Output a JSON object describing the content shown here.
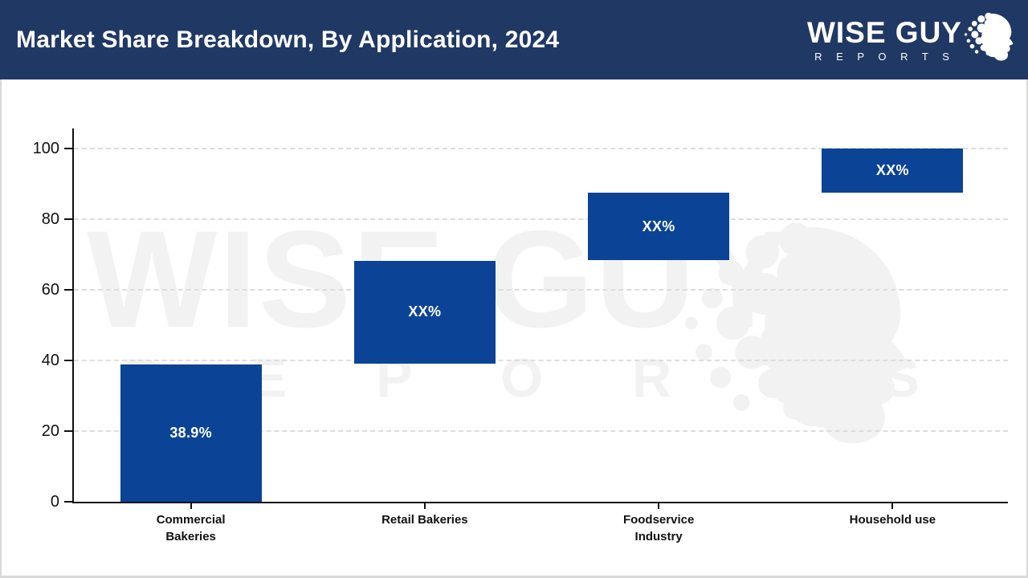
{
  "header": {
    "title": "Market Share Breakdown, By Application, 2024",
    "logo_line1": "WISE GUY",
    "logo_line2": "R E P O R T S"
  },
  "watermark": {
    "line1": "WISE GUY",
    "line2": "R E P O R T S"
  },
  "colors": {
    "header_bg": "#203864",
    "bar": "#0b4397",
    "grid": "#dddddd",
    "axis": "#111111",
    "watermark": "#f2f2f2"
  },
  "chart_data": {
    "type": "bar",
    "variant": "waterfall",
    "title": "Market Share Breakdown, By Application, 2024",
    "categories": [
      "Commercial Bakeries",
      "Retail Bakeries",
      "Foodservice Industry",
      "Household use"
    ],
    "segments": [
      {
        "category": "Commercial Bakeries",
        "start": 0,
        "end": 38.9,
        "label": "38.9%"
      },
      {
        "category": "Retail Bakeries",
        "start": 39.1,
        "end": 68.3,
        "label": "XX%"
      },
      {
        "category": "Foodservice Industry",
        "start": 68.3,
        "end": 87.5,
        "label": "XX%"
      },
      {
        "category": "Household use",
        "start": 87.5,
        "end": 100,
        "label": "XX%"
      }
    ],
    "xlabel": "",
    "ylabel": "",
    "ylim": [
      0,
      100
    ],
    "yticks": [
      0,
      20,
      40,
      60,
      80,
      100
    ],
    "grid": "horizontal-dashed",
    "legend": "none",
    "bar_color": "#0b4397"
  }
}
